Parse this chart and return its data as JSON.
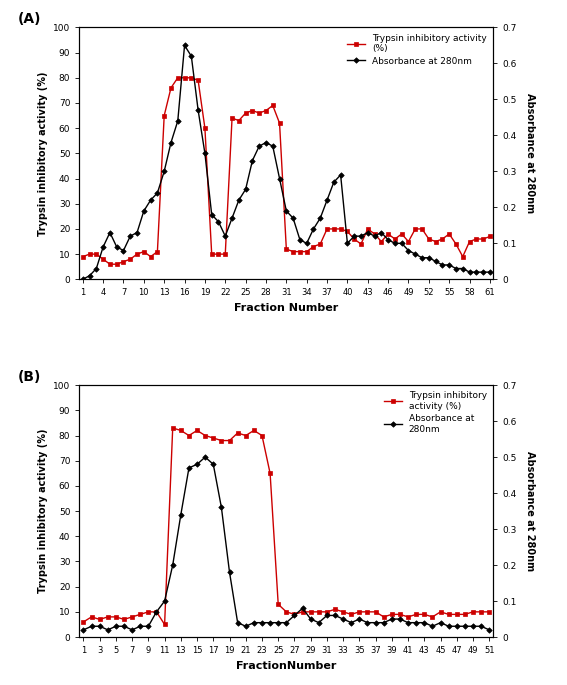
{
  "panel_A": {
    "fractions": [
      1,
      2,
      3,
      4,
      5,
      6,
      7,
      8,
      9,
      10,
      11,
      12,
      13,
      14,
      15,
      16,
      17,
      18,
      19,
      20,
      21,
      22,
      23,
      24,
      25,
      26,
      27,
      28,
      29,
      30,
      31,
      32,
      33,
      34,
      35,
      36,
      37,
      38,
      39,
      40,
      41,
      42,
      43,
      44,
      45,
      46,
      47,
      48,
      49,
      50,
      51,
      52,
      53,
      54,
      55,
      56,
      57,
      58,
      59,
      60,
      61
    ],
    "tia": [
      9,
      10,
      10,
      8,
      6,
      6,
      7,
      8,
      10,
      11,
      9,
      11,
      65,
      76,
      80,
      80,
      80,
      79,
      60,
      10,
      10,
      10,
      64,
      63,
      66,
      67,
      66,
      67,
      69,
      62,
      12,
      11,
      11,
      11,
      13,
      14,
      20,
      20,
      20,
      19,
      16,
      14,
      20,
      18,
      15,
      18,
      16,
      18,
      15,
      20,
      20,
      16,
      15,
      16,
      18,
      14,
      9,
      15,
      16,
      16,
      17
    ],
    "abs280": [
      0,
      0.01,
      0.03,
      0.09,
      0.13,
      0.09,
      0.08,
      0.12,
      0.13,
      0.19,
      0.22,
      0.24,
      0.3,
      0.38,
      0.44,
      0.65,
      0.62,
      0.47,
      0.35,
      0.18,
      0.16,
      0.12,
      0.17,
      0.22,
      0.25,
      0.33,
      0.37,
      0.38,
      0.37,
      0.28,
      0.19,
      0.17,
      0.11,
      0.1,
      0.14,
      0.17,
      0.22,
      0.27,
      0.29,
      0.1,
      0.12,
      0.12,
      0.13,
      0.12,
      0.13,
      0.11,
      0.1,
      0.1,
      0.08,
      0.07,
      0.06,
      0.06,
      0.05,
      0.04,
      0.04,
      0.03,
      0.03,
      0.02,
      0.02,
      0.02,
      0.02
    ],
    "xticks": [
      1,
      4,
      7,
      10,
      13,
      16,
      19,
      22,
      25,
      28,
      31,
      34,
      37,
      40,
      43,
      46,
      49,
      52,
      55,
      58,
      61
    ],
    "xlabel": "Fraction Number",
    "ylabel_left": "Trypsin inhibitory activity (%)",
    "ylabel_right": "Absorbance at 280nm",
    "ylim_left": [
      0,
      100
    ],
    "ylim_right": [
      0,
      0.7
    ],
    "yticks_left": [
      0,
      10,
      20,
      30,
      40,
      50,
      60,
      70,
      80,
      90,
      100
    ],
    "yticks_right": [
      0,
      0.1,
      0.2,
      0.3,
      0.4,
      0.5,
      0.6,
      0.7
    ],
    "label": "(A)",
    "legend_tia": "Trypsin inhibitory activity\n(%)",
    "legend_abs": "Absorbance at 280nm"
  },
  "panel_B": {
    "fractions": [
      1,
      2,
      3,
      4,
      5,
      6,
      7,
      8,
      9,
      10,
      11,
      12,
      13,
      14,
      15,
      16,
      17,
      18,
      19,
      20,
      21,
      22,
      23,
      24,
      25,
      26,
      27,
      28,
      29,
      30,
      31,
      32,
      33,
      34,
      35,
      36,
      37,
      38,
      39,
      40,
      41,
      42,
      43,
      44,
      45,
      46,
      47,
      48,
      49,
      50,
      51
    ],
    "tia": [
      6,
      8,
      7,
      8,
      8,
      7,
      8,
      9,
      10,
      10,
      5,
      83,
      82,
      80,
      82,
      80,
      79,
      78,
      78,
      81,
      80,
      82,
      80,
      65,
      13,
      10,
      9,
      10,
      10,
      10,
      10,
      11,
      10,
      9,
      10,
      10,
      10,
      8,
      9,
      9,
      8,
      9,
      9,
      8,
      10,
      9,
      9,
      9,
      10,
      10,
      10
    ],
    "abs280": [
      0.02,
      0.03,
      0.03,
      0.02,
      0.03,
      0.03,
      0.02,
      0.03,
      0.03,
      0.07,
      0.1,
      0.2,
      0.34,
      0.47,
      0.48,
      0.5,
      0.48,
      0.36,
      0.18,
      0.04,
      0.03,
      0.04,
      0.04,
      0.04,
      0.04,
      0.04,
      0.06,
      0.08,
      0.05,
      0.04,
      0.06,
      0.06,
      0.05,
      0.04,
      0.05,
      0.04,
      0.04,
      0.04,
      0.05,
      0.05,
      0.04,
      0.04,
      0.04,
      0.03,
      0.04,
      0.03,
      0.03,
      0.03,
      0.03,
      0.03,
      0.02
    ],
    "xticks": [
      1,
      3,
      5,
      7,
      9,
      11,
      13,
      15,
      17,
      19,
      21,
      23,
      25,
      27,
      29,
      31,
      33,
      35,
      37,
      39,
      41,
      43,
      45,
      47,
      49,
      51
    ],
    "xlabel": "FractionNumber",
    "ylabel_left": "Trypsin inhibitory activity (%)",
    "ylabel_right": "Absorbance at 280nm",
    "ylim_left": [
      0,
      100
    ],
    "ylim_right": [
      0,
      0.7
    ],
    "yticks_left": [
      0,
      10,
      20,
      30,
      40,
      50,
      60,
      70,
      80,
      90,
      100
    ],
    "yticks_right": [
      0,
      0.1,
      0.2,
      0.3,
      0.4,
      0.5,
      0.6,
      0.7
    ],
    "label": "(B)",
    "legend_tia": "Trypsin inhibitory\nactivity (%)",
    "legend_abs": "Absorbance at\n280nm"
  },
  "tia_color": "#cc0000",
  "abs_color": "#000000",
  "marker_tia": "s",
  "marker_abs": "D",
  "markersize": 2.8,
  "linewidth": 1.0
}
